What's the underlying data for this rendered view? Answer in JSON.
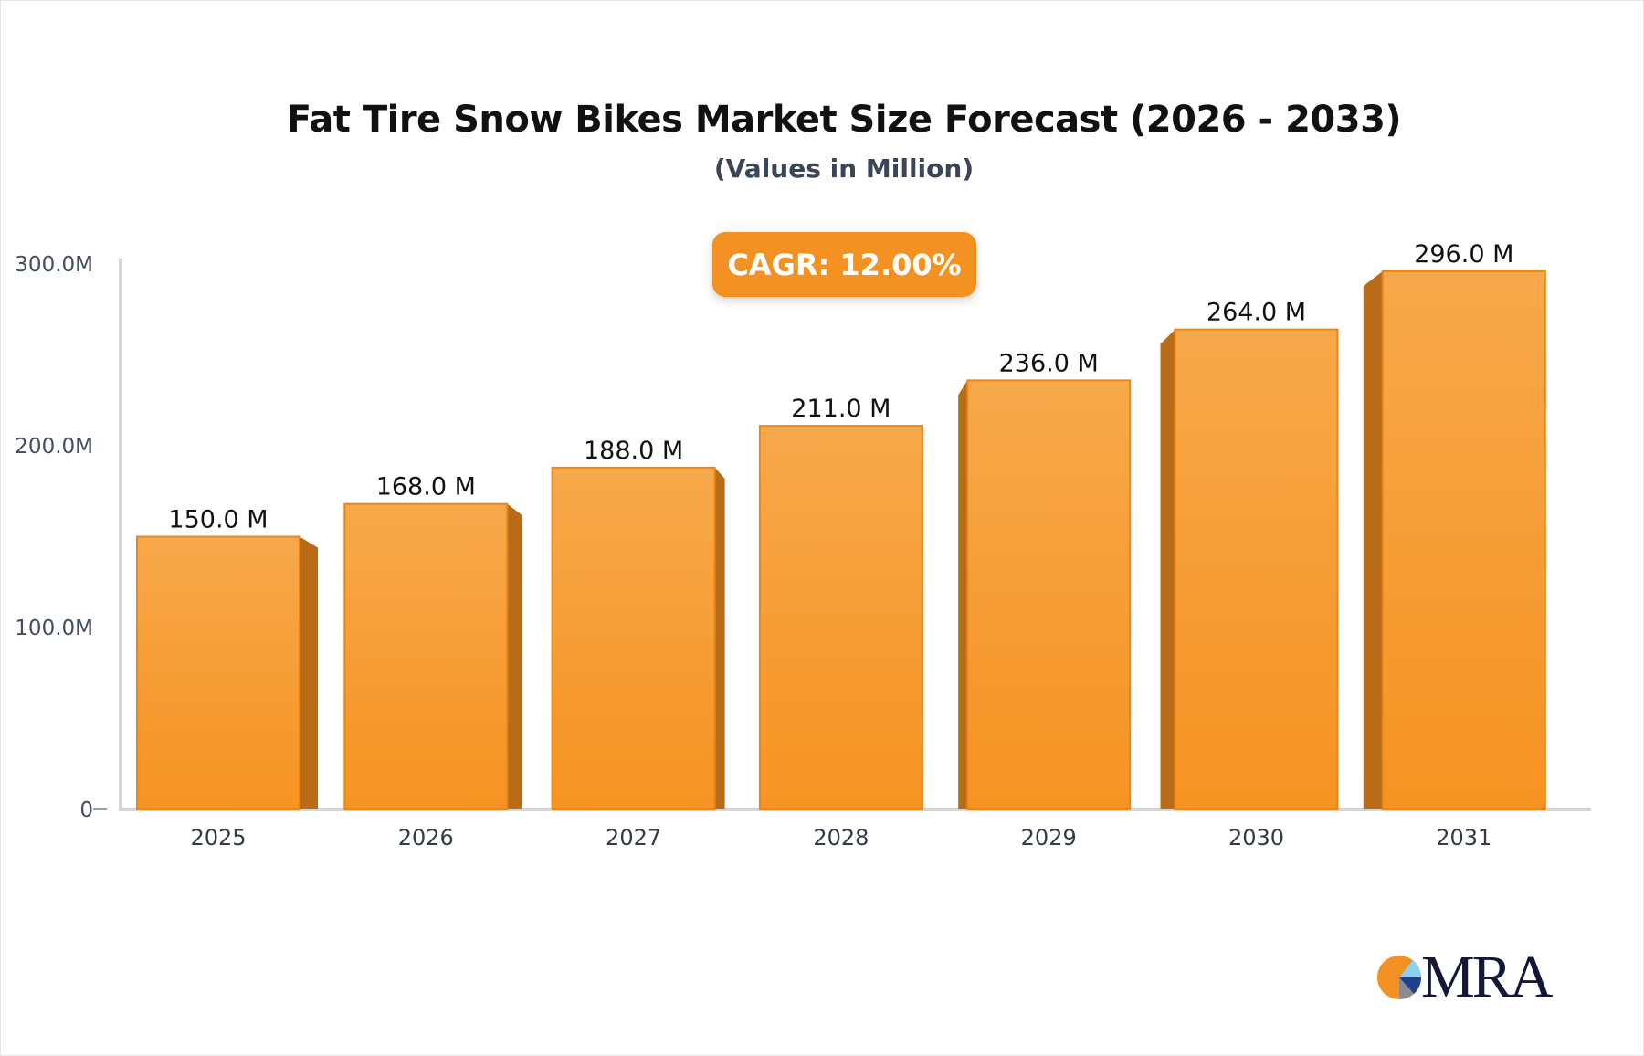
{
  "chart_data": {
    "type": "bar",
    "title": "Fat Tire Snow Bikes Market Size Forecast (2026 - 2033)",
    "subtitle": "(Values in Million)",
    "annotation": "CAGR: 12.00%",
    "categories": [
      "2025",
      "2026",
      "2027",
      "2028",
      "2029",
      "2030",
      "2031"
    ],
    "values": [
      150.0,
      168.0,
      188.0,
      211.0,
      236.0,
      264.0,
      296.0
    ],
    "data_labels": [
      "150.0 M",
      "168.0 M",
      "188.0 M",
      "211.0 M",
      "236.0 M",
      "264.0 M",
      "296.0 M"
    ],
    "y_ticks": [
      0,
      100,
      200,
      300
    ],
    "y_tick_labels": [
      "0",
      "100.0M",
      "200.0M",
      "300.0M"
    ],
    "ylim": [
      0,
      300
    ],
    "xlabel": "",
    "ylabel": "",
    "grid": false,
    "legend": "none",
    "colors": {
      "bar_top": "#f7a84a",
      "bar_bottom": "#f69322",
      "bar_side": "#b86c18",
      "accent": "#f39223",
      "axis": "#d3d5db"
    }
  },
  "logo": {
    "text": "MRA"
  }
}
